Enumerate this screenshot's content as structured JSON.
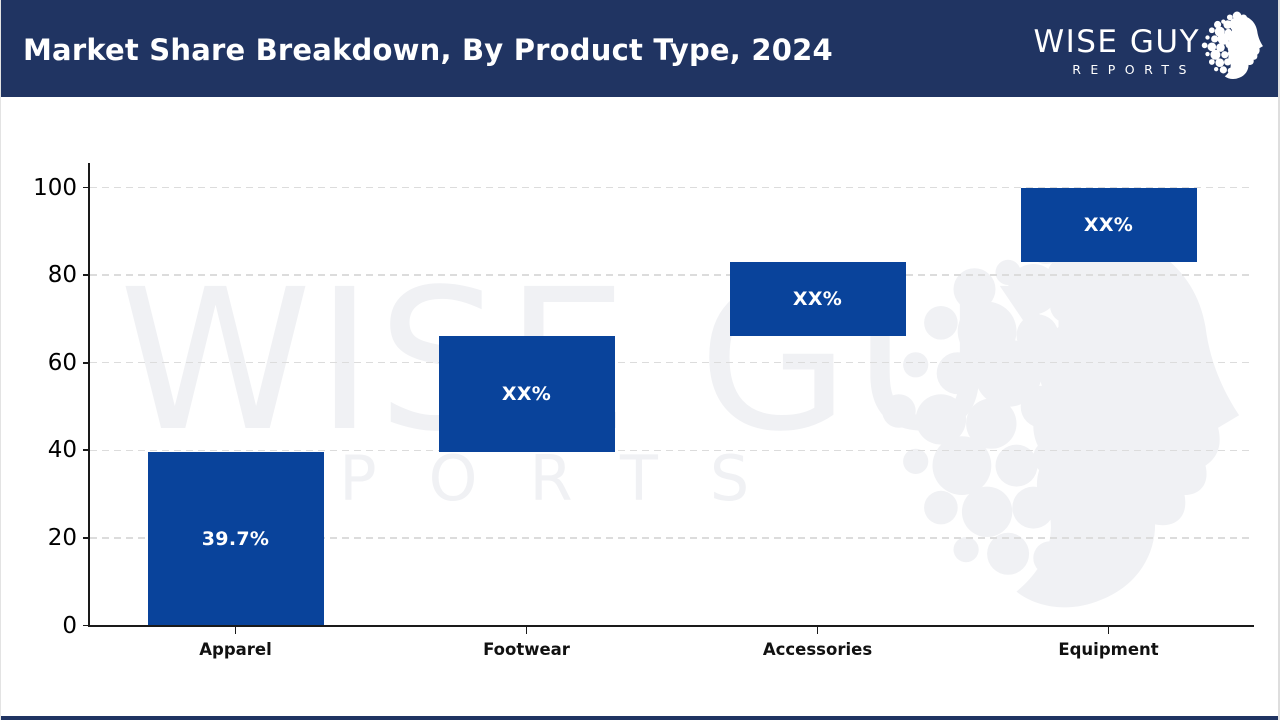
{
  "header": {
    "title": "Market Share Breakdown, By Product Type, 2024",
    "logo": {
      "name": "WISE GUY",
      "sub": "REPORTS"
    }
  },
  "watermark": {
    "line1": "WISE GUY",
    "line2": "REPORTS"
  },
  "colors": {
    "header_bg": "#203462",
    "footer_bg": "#203462",
    "bar": "#09439B",
    "bar_label": "#ffffff",
    "gridline": "#dcdcdc",
    "axis": "#1a1a1a",
    "watermark": "#f0f1f4"
  },
  "chart_data": {
    "type": "bar",
    "subtype": "waterfall",
    "title": "Market Share Breakdown, By Product Type, 2024",
    "categories": [
      "Apparel",
      "Footwear",
      "Accessories",
      "Equipment"
    ],
    "series": [
      {
        "name": "Market share (%)",
        "segments": [
          [
            0,
            39.7
          ],
          [
            39.7,
            66.1
          ],
          [
            66.1,
            83.0
          ],
          [
            83.0,
            100.0
          ]
        ],
        "values": [
          39.7,
          26.4,
          16.9,
          17.0
        ]
      }
    ],
    "bar_labels": [
      "39.7%",
      "XX%",
      "XX%",
      "XX%"
    ],
    "xlabel": "",
    "ylabel": "",
    "yticks": [
      0,
      20,
      40,
      60,
      80,
      100
    ],
    "ylim": [
      0,
      105
    ],
    "grid": "horizontal-dashed",
    "legend": "none"
  }
}
